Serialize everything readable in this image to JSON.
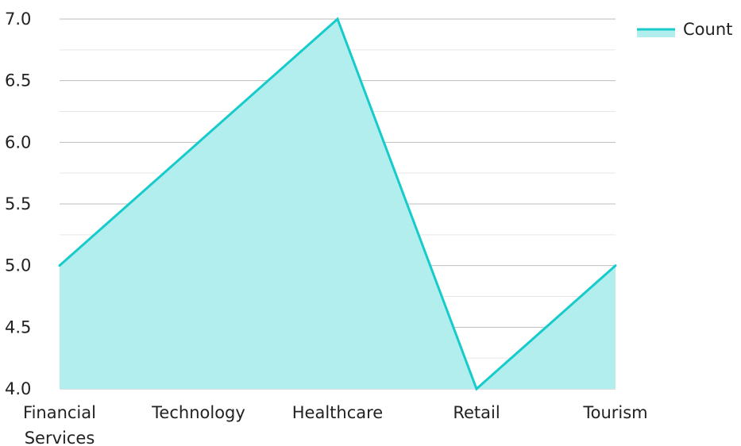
{
  "chart_data": {
    "type": "area",
    "categories": [
      "Financial Services",
      "Technology",
      "Healthcare",
      "Retail",
      "Tourism"
    ],
    "series": [
      {
        "name": "Count",
        "values": [
          5,
          6,
          7,
          4,
          5
        ]
      }
    ],
    "ylim": [
      4.0,
      7.0
    ],
    "yticks": [
      "4.0",
      "4.5",
      "5.0",
      "5.5",
      "6.0",
      "6.5",
      "7.0"
    ],
    "grid": true,
    "legend_position": "top-right",
    "colors": {
      "line": "#17CBCB",
      "fill": "#B2EEEE",
      "grid_major": "#BDBDBD",
      "grid_minor": "#E6E6E6"
    }
  }
}
